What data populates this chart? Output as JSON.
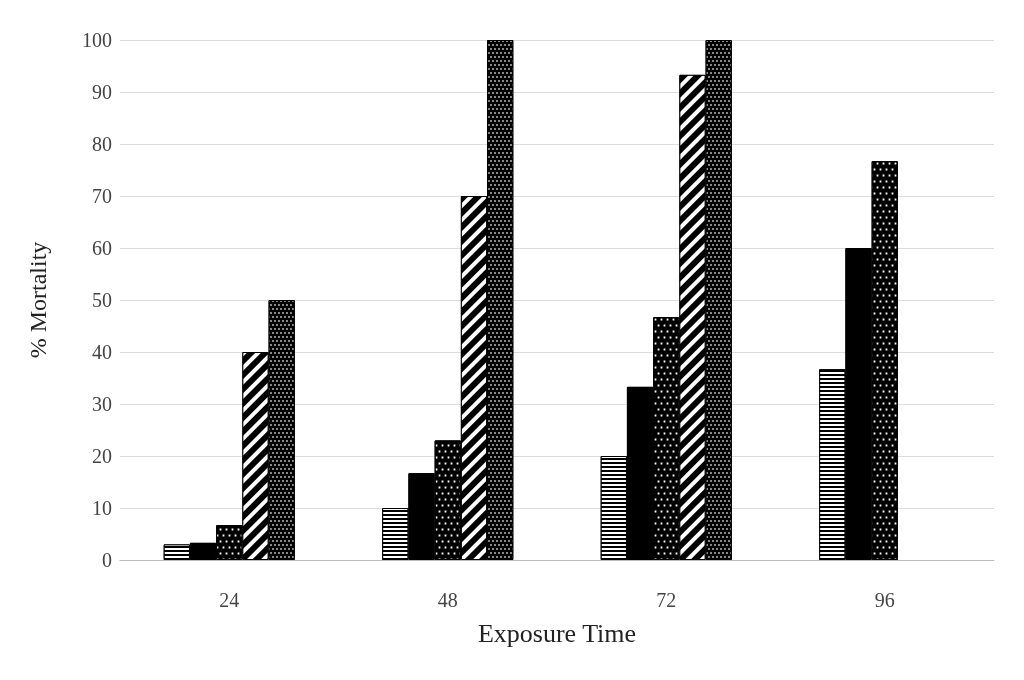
{
  "chart_data": {
    "type": "bar",
    "xlabel": "Exposure Time",
    "ylabel": "% Mortality",
    "categories": [
      "24",
      "48",
      "72",
      "96"
    ],
    "series": [
      {
        "color": "#000000",
        "values": [
          3,
          10,
          20,
          36.7
        ]
      },
      {
        "color": "#000000",
        "values": [
          3.3,
          16.7,
          33.3,
          60
        ]
      },
      {
        "color": "#000000",
        "values": [
          6.7,
          23,
          46.7,
          76.7
        ]
      },
      {
        "color": "#000000",
        "values": [
          40,
          70,
          93.3,
          null
        ]
      },
      {
        "color": "#000000",
        "values": [
          50,
          100,
          100,
          null
        ]
      }
    ],
    "ylim": [
      0,
      100
    ],
    "yticks": [
      0,
      10,
      20,
      30,
      40,
      50,
      60,
      70,
      80,
      90,
      100
    ],
    "grid": "y"
  }
}
